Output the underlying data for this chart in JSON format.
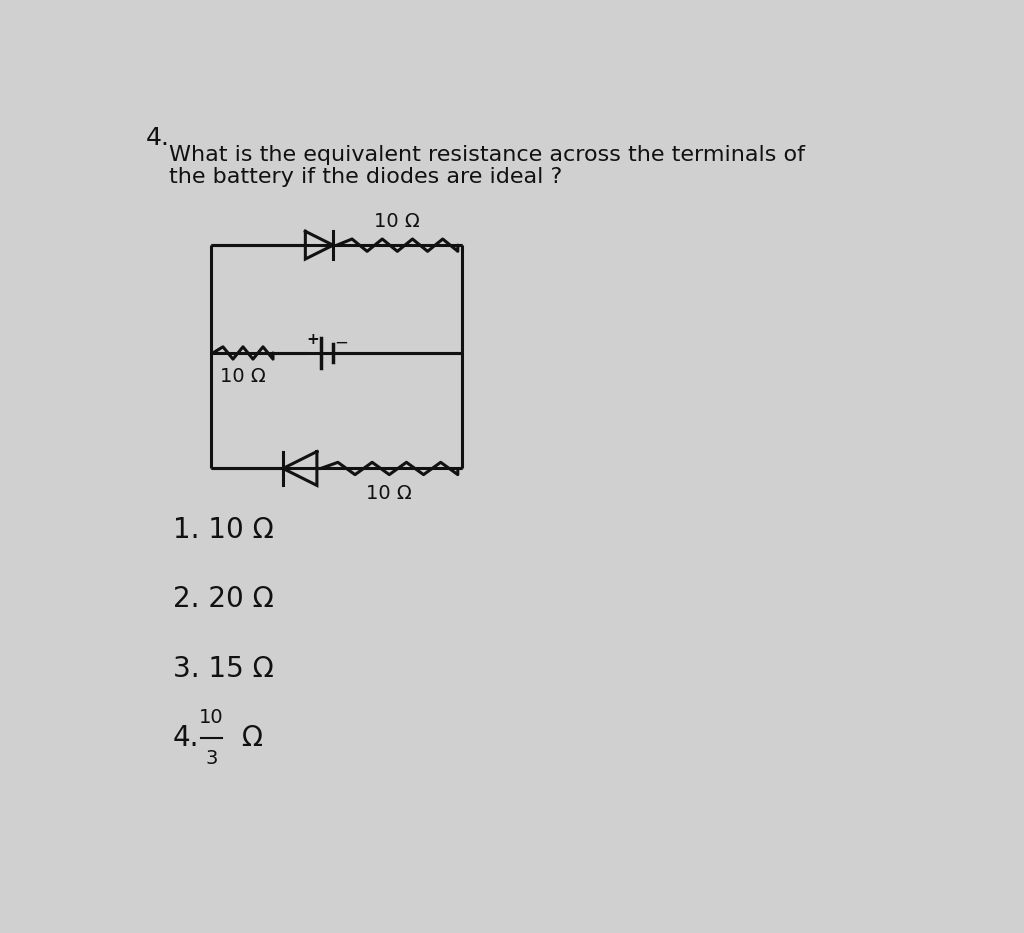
{
  "background_color": "#d0d0d0",
  "question_number": "4.",
  "question_line1": "What is the equivalent resistance across the terminals of",
  "question_line2": "the battery if the diodes are ideal ?",
  "options": [
    "1. 10 Ω",
    "2. 20 Ω",
    "3. 15 Ω"
  ],
  "option4_num": "10",
  "option4_den": "3",
  "option4_omega": "Ω",
  "label_top": "10 Ω",
  "label_mid": "10 Ω",
  "label_bot": "10 Ω",
  "title_fontsize": 16,
  "option_fontsize": 20,
  "circuit_lw": 2.2,
  "circuit_color": "#111111",
  "text_color": "#111111"
}
